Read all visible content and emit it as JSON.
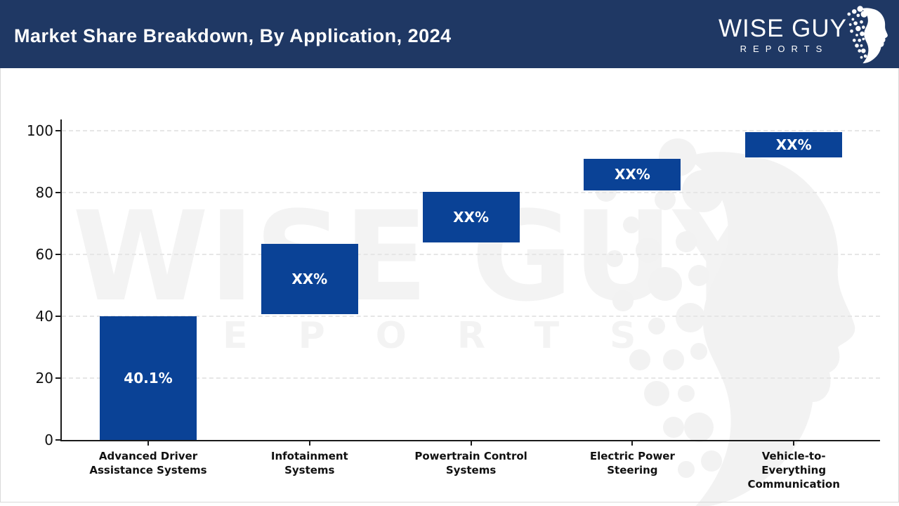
{
  "header": {
    "title": "Market Share Breakdown, By Application, 2024",
    "logo": {
      "wordmark": "WISE GUY",
      "subtext": "REPORTS"
    }
  },
  "watermark": {
    "wordmark": "WISE GUY",
    "subtext": "REPORTS"
  },
  "colors": {
    "header_bg": "#1f3864",
    "bar": "#0a4296",
    "axis": "#1a1a1a",
    "grid": "#e6e6e6",
    "watermark": "#f3f3f3",
    "value_label": "#ffffff",
    "category_label": "#111111"
  },
  "chart_data": {
    "type": "bar",
    "variant": "waterfall",
    "title": "Market Share Breakdown, By Application, 2024",
    "categories": [
      "Advanced Driver\nAssistance Systems",
      "Infotainment\nSystems",
      "Powertrain Control\nSystems",
      "Electric Power\nSteering",
      "Vehicle-to-\nEverything\nCommunication"
    ],
    "bars": [
      {
        "value_label": "40.1%",
        "start": 0,
        "end": 40.1
      },
      {
        "value_label": "XX%",
        "start": 40.6,
        "end": 63.5
      },
      {
        "value_label": "XX%",
        "start": 63.8,
        "end": 80.2
      },
      {
        "value_label": "XX%",
        "start": 80.7,
        "end": 90.9
      },
      {
        "value_label": "XX%",
        "start": 91.4,
        "end": 99.6
      }
    ],
    "xlabel": "",
    "ylabel": "",
    "yticks": [
      0,
      20,
      40,
      60,
      80,
      100
    ],
    "ylim": [
      0,
      103.6
    ],
    "grid": "horizontal-dashed",
    "legend": "none",
    "bar_color": "#0a4296"
  }
}
